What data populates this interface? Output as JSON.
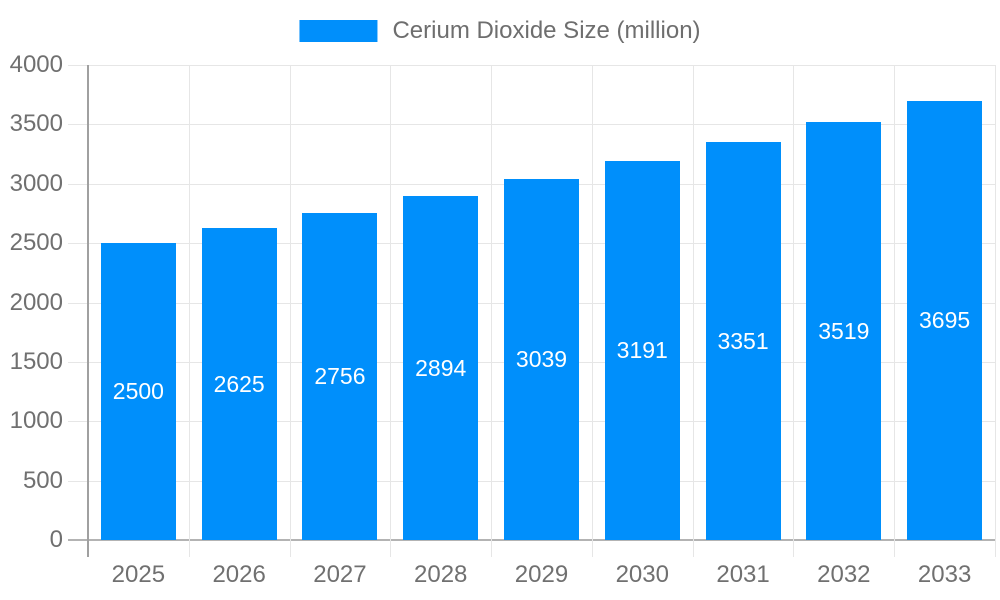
{
  "chart_data": {
    "type": "bar",
    "title": "",
    "xlabel": "",
    "ylabel": "",
    "legend": {
      "label": "Cerium Dioxide Size (million)",
      "position": "top"
    },
    "categories": [
      "2025",
      "2026",
      "2027",
      "2028",
      "2029",
      "2030",
      "2031",
      "2032",
      "2033"
    ],
    "series": [
      {
        "name": "Cerium Dioxide Size (million)",
        "values": [
          2500,
          2625,
          2756,
          2894,
          3039,
          3191,
          3351,
          3519,
          3695
        ]
      }
    ],
    "ylim": [
      0,
      4000
    ],
    "yticks": [
      0,
      500,
      1000,
      1500,
      2000,
      2500,
      3000,
      3500,
      4000
    ],
    "grid": true,
    "data_labels": "inside-center",
    "colors": {
      "bar": "#008FFB",
      "data_label_text": "#ffffff",
      "axis_text": "#707070",
      "legend_text": "#6e6e6e",
      "gridline": "#e6e6e6",
      "axis_line": "#a0a0a0",
      "zero_line": "#b3b3b3",
      "background": "#ffffff"
    }
  }
}
